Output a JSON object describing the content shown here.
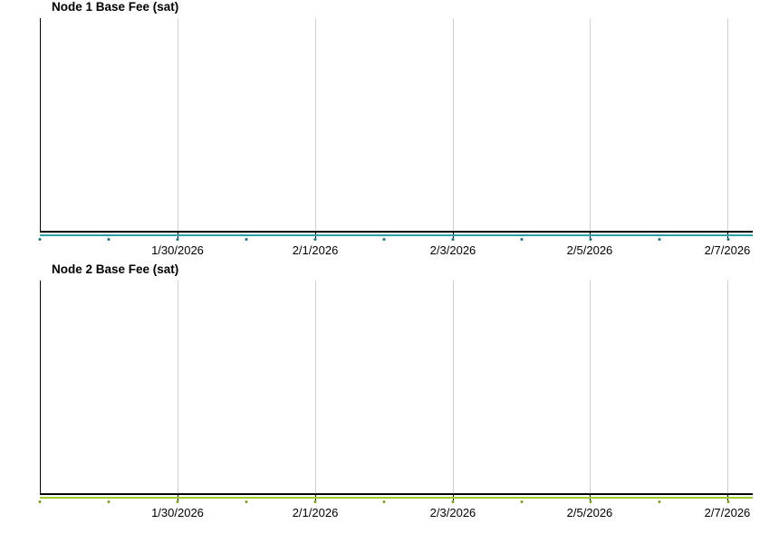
{
  "page": {
    "background": "#ffffff",
    "grid_color": "#d0d0d0",
    "axis_color": "#000000"
  },
  "chart_data": [
    {
      "type": "line",
      "title": "Node 1 Base Fee (sat)",
      "x": [
        "1/28/2026",
        "1/29/2026",
        "1/30/2026",
        "1/31/2026",
        "2/1/2026",
        "2/2/2026",
        "2/3/2026",
        "2/4/2026",
        "2/5/2026",
        "2/6/2026",
        "2/7/2026"
      ],
      "series": [
        {
          "name": "Node 1 Base Fee (sat)",
          "values": [
            0,
            0,
            0,
            0,
            0,
            0,
            0,
            0,
            0,
            0,
            0
          ]
        }
      ],
      "x_tick_labels": [
        "1/30/2026",
        "2/1/2026",
        "2/3/2026",
        "2/5/2026",
        "2/7/2026"
      ],
      "y_tick_labels": [],
      "xlabel": "",
      "ylabel": "",
      "grid": "vertical-only",
      "legend": "none",
      "line_color": "#2aa0a8",
      "marker_color": "#1d6e78"
    },
    {
      "type": "line",
      "title": "Node 2 Base Fee (sat)",
      "x": [
        "1/28/2026",
        "1/29/2026",
        "1/30/2026",
        "1/31/2026",
        "2/1/2026",
        "2/2/2026",
        "2/3/2026",
        "2/4/2026",
        "2/5/2026",
        "2/6/2026",
        "2/7/2026"
      ],
      "series": [
        {
          "name": "Node 2 Base Fee (sat)",
          "values": [
            0,
            0,
            0,
            0,
            0,
            0,
            0,
            0,
            0,
            0,
            0
          ]
        }
      ],
      "x_tick_labels": [
        "1/30/2026",
        "2/1/2026",
        "2/3/2026",
        "2/5/2026",
        "2/7/2026"
      ],
      "y_tick_labels": [],
      "xlabel": "",
      "ylabel": "",
      "grid": "vertical-only",
      "legend": "none",
      "line_color": "#9ecb2d",
      "marker_color": "#7a9e22"
    }
  ]
}
